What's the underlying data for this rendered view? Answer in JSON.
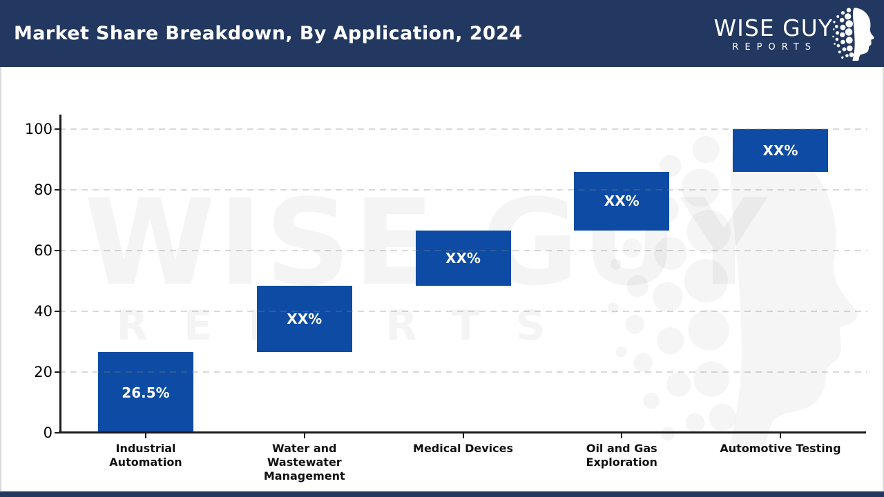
{
  "header": {
    "title": "Market Share Breakdown, By Application, 2024",
    "logo": {
      "brand": "WISE GUY",
      "sub": "REPORTS"
    }
  },
  "watermark": {
    "brand": "WISE GUY",
    "sub": "REPORTS"
  },
  "footer": {},
  "chart_data": {
    "type": "bar",
    "subtype": "waterfall",
    "title": "Market Share Breakdown, By Application, 2024",
    "categories": [
      "Industrial Automation",
      "Water and Wastewater Management",
      "Medical Devices",
      "Oil and Gas Exploration",
      "Automotive Testing"
    ],
    "category_display": [
      [
        "Industrial",
        "Automation"
      ],
      [
        "Water and",
        "Wastewater",
        "Management"
      ],
      [
        "Medical Devices"
      ],
      [
        "Oil and Gas",
        "Exploration"
      ],
      [
        "Automotive Testing"
      ]
    ],
    "segments": [
      {
        "category": "Industrial Automation",
        "label": "26.5%",
        "start": 0,
        "end": 26.5
      },
      {
        "category": "Water and Wastewater Management",
        "label": "XX%",
        "start": 26.5,
        "end": 48.5
      },
      {
        "category": "Medical Devices",
        "label": "XX%",
        "start": 48.5,
        "end": 66.5
      },
      {
        "category": "Oil and Gas Exploration",
        "label": "XX%",
        "start": 66.5,
        "end": 86
      },
      {
        "category": "Automotive Testing",
        "label": "XX%",
        "start": 86,
        "end": 100
      }
    ],
    "xlabel": "",
    "ylabel": "",
    "ylim": [
      0,
      100
    ],
    "yticks": [
      0,
      20,
      40,
      60,
      80,
      100
    ],
    "grid": true,
    "grid_style": "dashed",
    "legend": false,
    "bar_color": "#0d4ba4",
    "value_label_color": "#ffffff",
    "axis_color": "#1a1a1a"
  },
  "colors": {
    "header_bg": "#223860",
    "footer_bg": "#223860",
    "watermark": "rgba(0,0,0,0.045)"
  }
}
